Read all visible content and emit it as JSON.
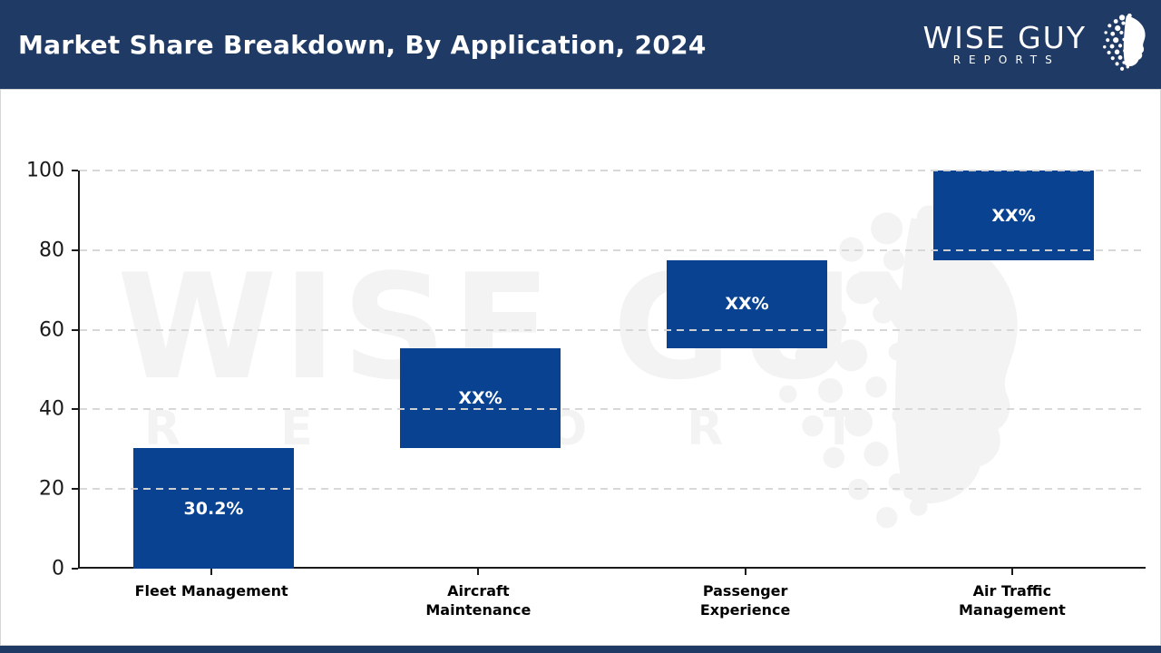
{
  "header": {
    "title": "Market Share Breakdown, By Application, 2024",
    "logo": {
      "line1": "WISE GUY",
      "line2": "REPORTS"
    }
  },
  "watermark": {
    "line1": "WISE GUY",
    "line2": "R E P O R T S"
  },
  "chart_data": {
    "type": "bar",
    "subtype": "waterfall",
    "title": "Market Share Breakdown, By Application, 2024",
    "xlabel": "",
    "ylabel": "",
    "ylim": [
      0,
      100
    ],
    "yticks": [
      0,
      20,
      40,
      60,
      80,
      100
    ],
    "grid": "horizontal-dashed",
    "legend": "none",
    "categories": [
      "Fleet Management",
      "Aircraft\nMaintenance",
      "Passenger\nExperience",
      "Air Traffic\nManagement"
    ],
    "series": [
      {
        "name": "Market Share (%)",
        "segments": [
          {
            "category": "Fleet Management",
            "start": 0,
            "end": 30.2,
            "label": "30.2%"
          },
          {
            "category": "Aircraft Maintenance",
            "start": 30.2,
            "end": 55.4,
            "label": "XX%"
          },
          {
            "category": "Passenger Experience",
            "start": 55.4,
            "end": 77.4,
            "label": "XX%"
          },
          {
            "category": "Air Traffic Management",
            "start": 77.4,
            "end": 100,
            "label": "XX%"
          }
        ]
      }
    ],
    "colors": {
      "bar": "#084291",
      "bar_label": "#ffffff",
      "gridline": "#d6d6d6",
      "axis": "#1a1a1a"
    }
  },
  "colors": {
    "header_bg": "#1f3a64",
    "footer_bg": "#1f3a64",
    "chart_bg": "#ffffff",
    "watermark": "#f3f3f3"
  }
}
